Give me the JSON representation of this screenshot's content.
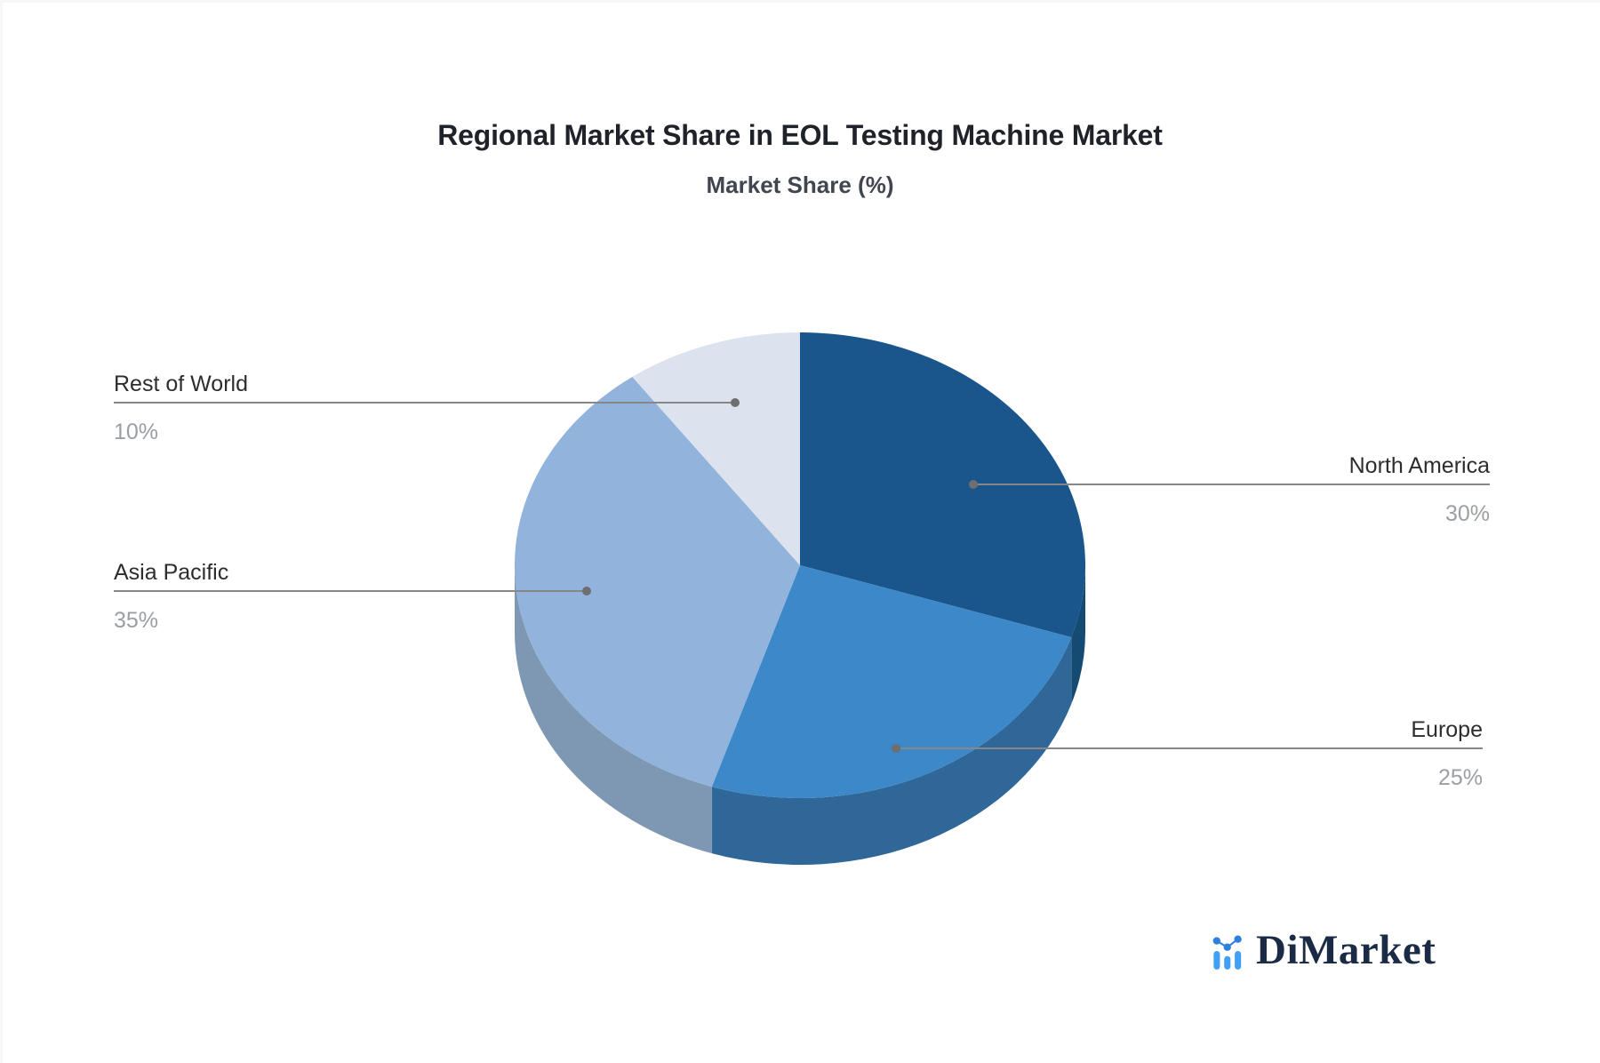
{
  "header": {
    "title": "Regional Market Share in EOL Testing Machine Market",
    "subtitle": "Market Share (%)"
  },
  "chart_data": {
    "type": "pie",
    "title": "Regional Market Share in EOL Testing Machine Market",
    "subtitle": "Market Share (%)",
    "unit": "%",
    "style": "3d-pie",
    "start_angle_deg": 0,
    "direction": "clockwise",
    "legend": "none",
    "slices": [
      {
        "name": "North America",
        "value": 30,
        "label": "30%",
        "color": "#1a568c",
        "side_color": "#154a73"
      },
      {
        "name": "Europe",
        "value": 25,
        "label": "25%",
        "color": "#3d88c9",
        "side_color": "#2f6898"
      },
      {
        "name": "Asia Pacific",
        "value": 35,
        "label": "35%",
        "color": "#92b4dc",
        "side_color": "#7e97b2"
      },
      {
        "name": "Rest of World",
        "value": 10,
        "label": "10%",
        "color": "#dce3ee",
        "side_color": "#b9c6d8"
      }
    ],
    "leader_line_color": "#878787",
    "leader_dot_color": "#6e6e6e"
  },
  "branding": {
    "logo_text": "DiMarket",
    "logo_icon": "bar-line-chart-icon",
    "icon_bar_color": "#42a0f4",
    "icon_dot_color": "#2e80dd",
    "text_color": "#1c2b45"
  }
}
